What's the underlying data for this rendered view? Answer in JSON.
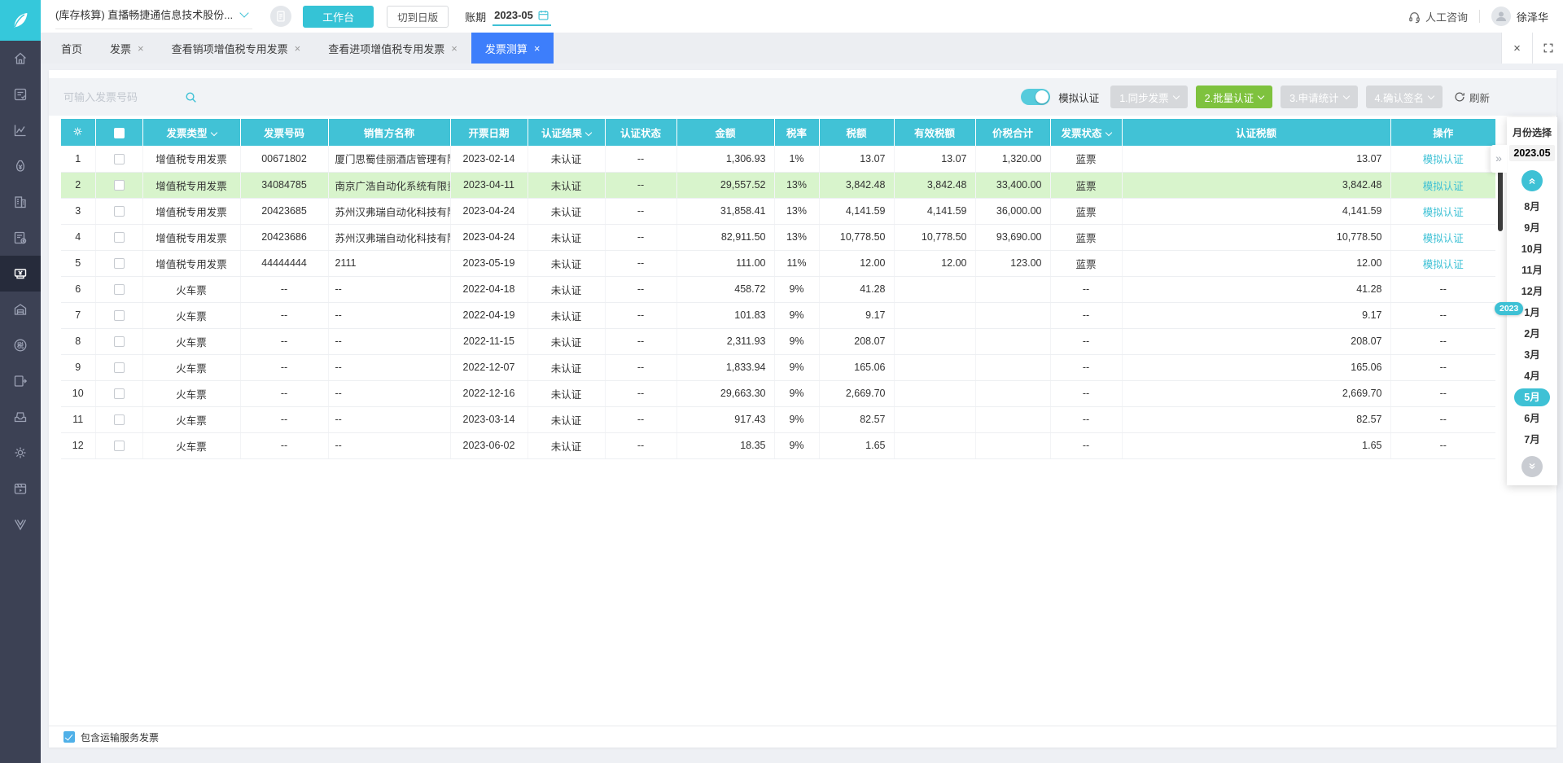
{
  "colors": {
    "accent_teal": "#3EC1D5",
    "table_header_teal": "#41C2D6",
    "active_tab_blue": "#3D7EFB",
    "green_button": "#7EC23E",
    "gray_button": "#D6D8DB",
    "row_highlight_green": "#D8F4CC",
    "sidebar_bg": "#3C4154",
    "footer_checkbox_blue": "#4FB0E8"
  },
  "header": {
    "company_selector": "(库存核算) 直播畅捷通信息技术股份...",
    "workbench_button": "工作台",
    "switch_version_button": "切到日版",
    "period_label": "账期",
    "period_value": "2023-05",
    "support_link": "人工咨询",
    "username": "徐泽华"
  },
  "tabs": [
    {
      "label": "首页",
      "closable": false,
      "active": false
    },
    {
      "label": "发票",
      "closable": true,
      "active": false
    },
    {
      "label": "查看销项增值税专用发票",
      "closable": true,
      "active": false
    },
    {
      "label": "查看进项增值税专用发票",
      "closable": true,
      "active": false
    },
    {
      "label": "发票测算",
      "closable": true,
      "active": true
    }
  ],
  "toolbar": {
    "search_placeholder": "可输入发票号码",
    "toggle_label": "模拟认证",
    "toggle_on": true,
    "action_buttons": [
      {
        "label": "1.同步发票",
        "style": "gray"
      },
      {
        "label": "2.批量认证",
        "style": "green"
      },
      {
        "label": "3.申请统计",
        "style": "gray"
      },
      {
        "label": "4.确认签名",
        "style": "gray"
      }
    ],
    "refresh_label": "刷新"
  },
  "table": {
    "columns": [
      {
        "label": "发票类型",
        "key": "type",
        "sort": true
      },
      {
        "label": "发票号码",
        "key": "no",
        "sort": false
      },
      {
        "label": "销售方名称",
        "key": "seller",
        "sort": false
      },
      {
        "label": "开票日期",
        "key": "date",
        "sort": false
      },
      {
        "label": "认证结果",
        "key": "result",
        "sort": true
      },
      {
        "label": "认证状态",
        "key": "status",
        "sort": false
      },
      {
        "label": "金额",
        "key": "amount",
        "sort": false
      },
      {
        "label": "税率",
        "key": "rate",
        "sort": false
      },
      {
        "label": "税额",
        "key": "tax",
        "sort": false
      },
      {
        "label": "有效税额",
        "key": "valid_tax",
        "sort": false
      },
      {
        "label": "价税合计",
        "key": "total",
        "sort": false
      },
      {
        "label": "发票状态",
        "key": "inv_status",
        "sort": true
      },
      {
        "label": "认证税额",
        "key": "cert_tax",
        "sort": false
      },
      {
        "label": "操作",
        "key": "action",
        "sort": false
      }
    ],
    "rows": [
      {
        "idx": "1",
        "type": "增值税专用发票",
        "no": "00671802",
        "seller": "厦门思蜀佳丽酒店管理有限",
        "date": "2023-02-14",
        "result": "未认证",
        "status": "--",
        "amount": "1,306.93",
        "rate": "1%",
        "tax": "13.07",
        "valid_tax": "13.07",
        "total": "1,320.00",
        "inv_status": "蓝票",
        "cert_tax": "13.07",
        "action": "模拟认证",
        "highlight": false
      },
      {
        "idx": "2",
        "type": "增值税专用发票",
        "no": "34084785",
        "seller": "南京广浩自动化系统有限责",
        "date": "2023-04-11",
        "result": "未认证",
        "status": "--",
        "amount": "29,557.52",
        "rate": "13%",
        "tax": "3,842.48",
        "valid_tax": "3,842.48",
        "total": "33,400.00",
        "inv_status": "蓝票",
        "cert_tax": "3,842.48",
        "action": "模拟认证",
        "highlight": true
      },
      {
        "idx": "3",
        "type": "增值税专用发票",
        "no": "20423685",
        "seller": "苏州汉弗瑞自动化科技有限",
        "date": "2023-04-24",
        "result": "未认证",
        "status": "--",
        "amount": "31,858.41",
        "rate": "13%",
        "tax": "4,141.59",
        "valid_tax": "4,141.59",
        "total": "36,000.00",
        "inv_status": "蓝票",
        "cert_tax": "4,141.59",
        "action": "模拟认证",
        "highlight": false
      },
      {
        "idx": "4",
        "type": "增值税专用发票",
        "no": "20423686",
        "seller": "苏州汉弗瑞自动化科技有限",
        "date": "2023-04-24",
        "result": "未认证",
        "status": "--",
        "amount": "82,911.50",
        "rate": "13%",
        "tax": "10,778.50",
        "valid_tax": "10,778.50",
        "total": "93,690.00",
        "inv_status": "蓝票",
        "cert_tax": "10,778.50",
        "action": "模拟认证",
        "highlight": false
      },
      {
        "idx": "5",
        "type": "增值税专用发票",
        "no": "44444444",
        "seller": "2111",
        "date": "2023-05-19",
        "result": "未认证",
        "status": "--",
        "amount": "111.00",
        "rate": "11%",
        "tax": "12.00",
        "valid_tax": "12.00",
        "total": "123.00",
        "inv_status": "蓝票",
        "cert_tax": "12.00",
        "action": "模拟认证",
        "highlight": false
      },
      {
        "idx": "6",
        "type": "火车票",
        "no": "--",
        "seller": "--",
        "date": "2022-04-18",
        "result": "未认证",
        "status": "--",
        "amount": "458.72",
        "rate": "9%",
        "tax": "41.28",
        "valid_tax": "",
        "total": "",
        "inv_status": "--",
        "cert_tax": "41.28",
        "action": "--",
        "highlight": false
      },
      {
        "idx": "7",
        "type": "火车票",
        "no": "--",
        "seller": "--",
        "date": "2022-04-19",
        "result": "未认证",
        "status": "--",
        "amount": "101.83",
        "rate": "9%",
        "tax": "9.17",
        "valid_tax": "",
        "total": "",
        "inv_status": "--",
        "cert_tax": "9.17",
        "action": "--",
        "highlight": false
      },
      {
        "idx": "8",
        "type": "火车票",
        "no": "--",
        "seller": "--",
        "date": "2022-11-15",
        "result": "未认证",
        "status": "--",
        "amount": "2,311.93",
        "rate": "9%",
        "tax": "208.07",
        "valid_tax": "",
        "total": "",
        "inv_status": "--",
        "cert_tax": "208.07",
        "action": "--",
        "highlight": false
      },
      {
        "idx": "9",
        "type": "火车票",
        "no": "--",
        "seller": "--",
        "date": "2022-12-07",
        "result": "未认证",
        "status": "--",
        "amount": "1,833.94",
        "rate": "9%",
        "tax": "165.06",
        "valid_tax": "",
        "total": "",
        "inv_status": "--",
        "cert_tax": "165.06",
        "action": "--",
        "highlight": false
      },
      {
        "idx": "10",
        "type": "火车票",
        "no": "--",
        "seller": "--",
        "date": "2022-12-16",
        "result": "未认证",
        "status": "--",
        "amount": "29,663.30",
        "rate": "9%",
        "tax": "2,669.70",
        "valid_tax": "",
        "total": "",
        "inv_status": "--",
        "cert_tax": "2,669.70",
        "action": "--",
        "highlight": false
      },
      {
        "idx": "11",
        "type": "火车票",
        "no": "--",
        "seller": "--",
        "date": "2023-03-14",
        "result": "未认证",
        "status": "--",
        "amount": "917.43",
        "rate": "9%",
        "tax": "82.57",
        "valid_tax": "",
        "total": "",
        "inv_status": "--",
        "cert_tax": "82.57",
        "action": "--",
        "highlight": false
      },
      {
        "idx": "12",
        "type": "火车票",
        "no": "--",
        "seller": "--",
        "date": "2023-06-02",
        "result": "未认证",
        "status": "--",
        "amount": "18.35",
        "rate": "9%",
        "tax": "1.65",
        "valid_tax": "",
        "total": "",
        "inv_status": "--",
        "cert_tax": "1.65",
        "action": "--",
        "highlight": false
      }
    ]
  },
  "month_panel": {
    "title": "月份选择",
    "current_period": "2023.05",
    "year_badge": "2023",
    "months": [
      "8月",
      "9月",
      "10月",
      "11月",
      "12月",
      "1月",
      "2月",
      "3月",
      "4月",
      "5月",
      "6月",
      "7月"
    ],
    "selected_month": "5月"
  },
  "footer": {
    "checkbox_label": "包含运输服务发票",
    "checked": true
  },
  "icon_names": [
    "feather-logo-icon",
    "home-icon",
    "voucher-icon",
    "chart-icon",
    "funds-icon",
    "company-icon",
    "report-icon",
    "invoice-icon",
    "inventory-icon",
    "tax-icon",
    "export-icon",
    "inbox-icon",
    "settings-icon",
    "media-icon",
    "v-logo-icon",
    "notes-icon",
    "calendar-icon",
    "headset-icon",
    "avatar-icon",
    "search-icon",
    "refresh-icon",
    "gear-icon",
    "chevron-down-icon",
    "collapse-panel-icon",
    "scroll-up-icon",
    "scroll-down-icon",
    "close-icon",
    "fullscreen-icon"
  ]
}
